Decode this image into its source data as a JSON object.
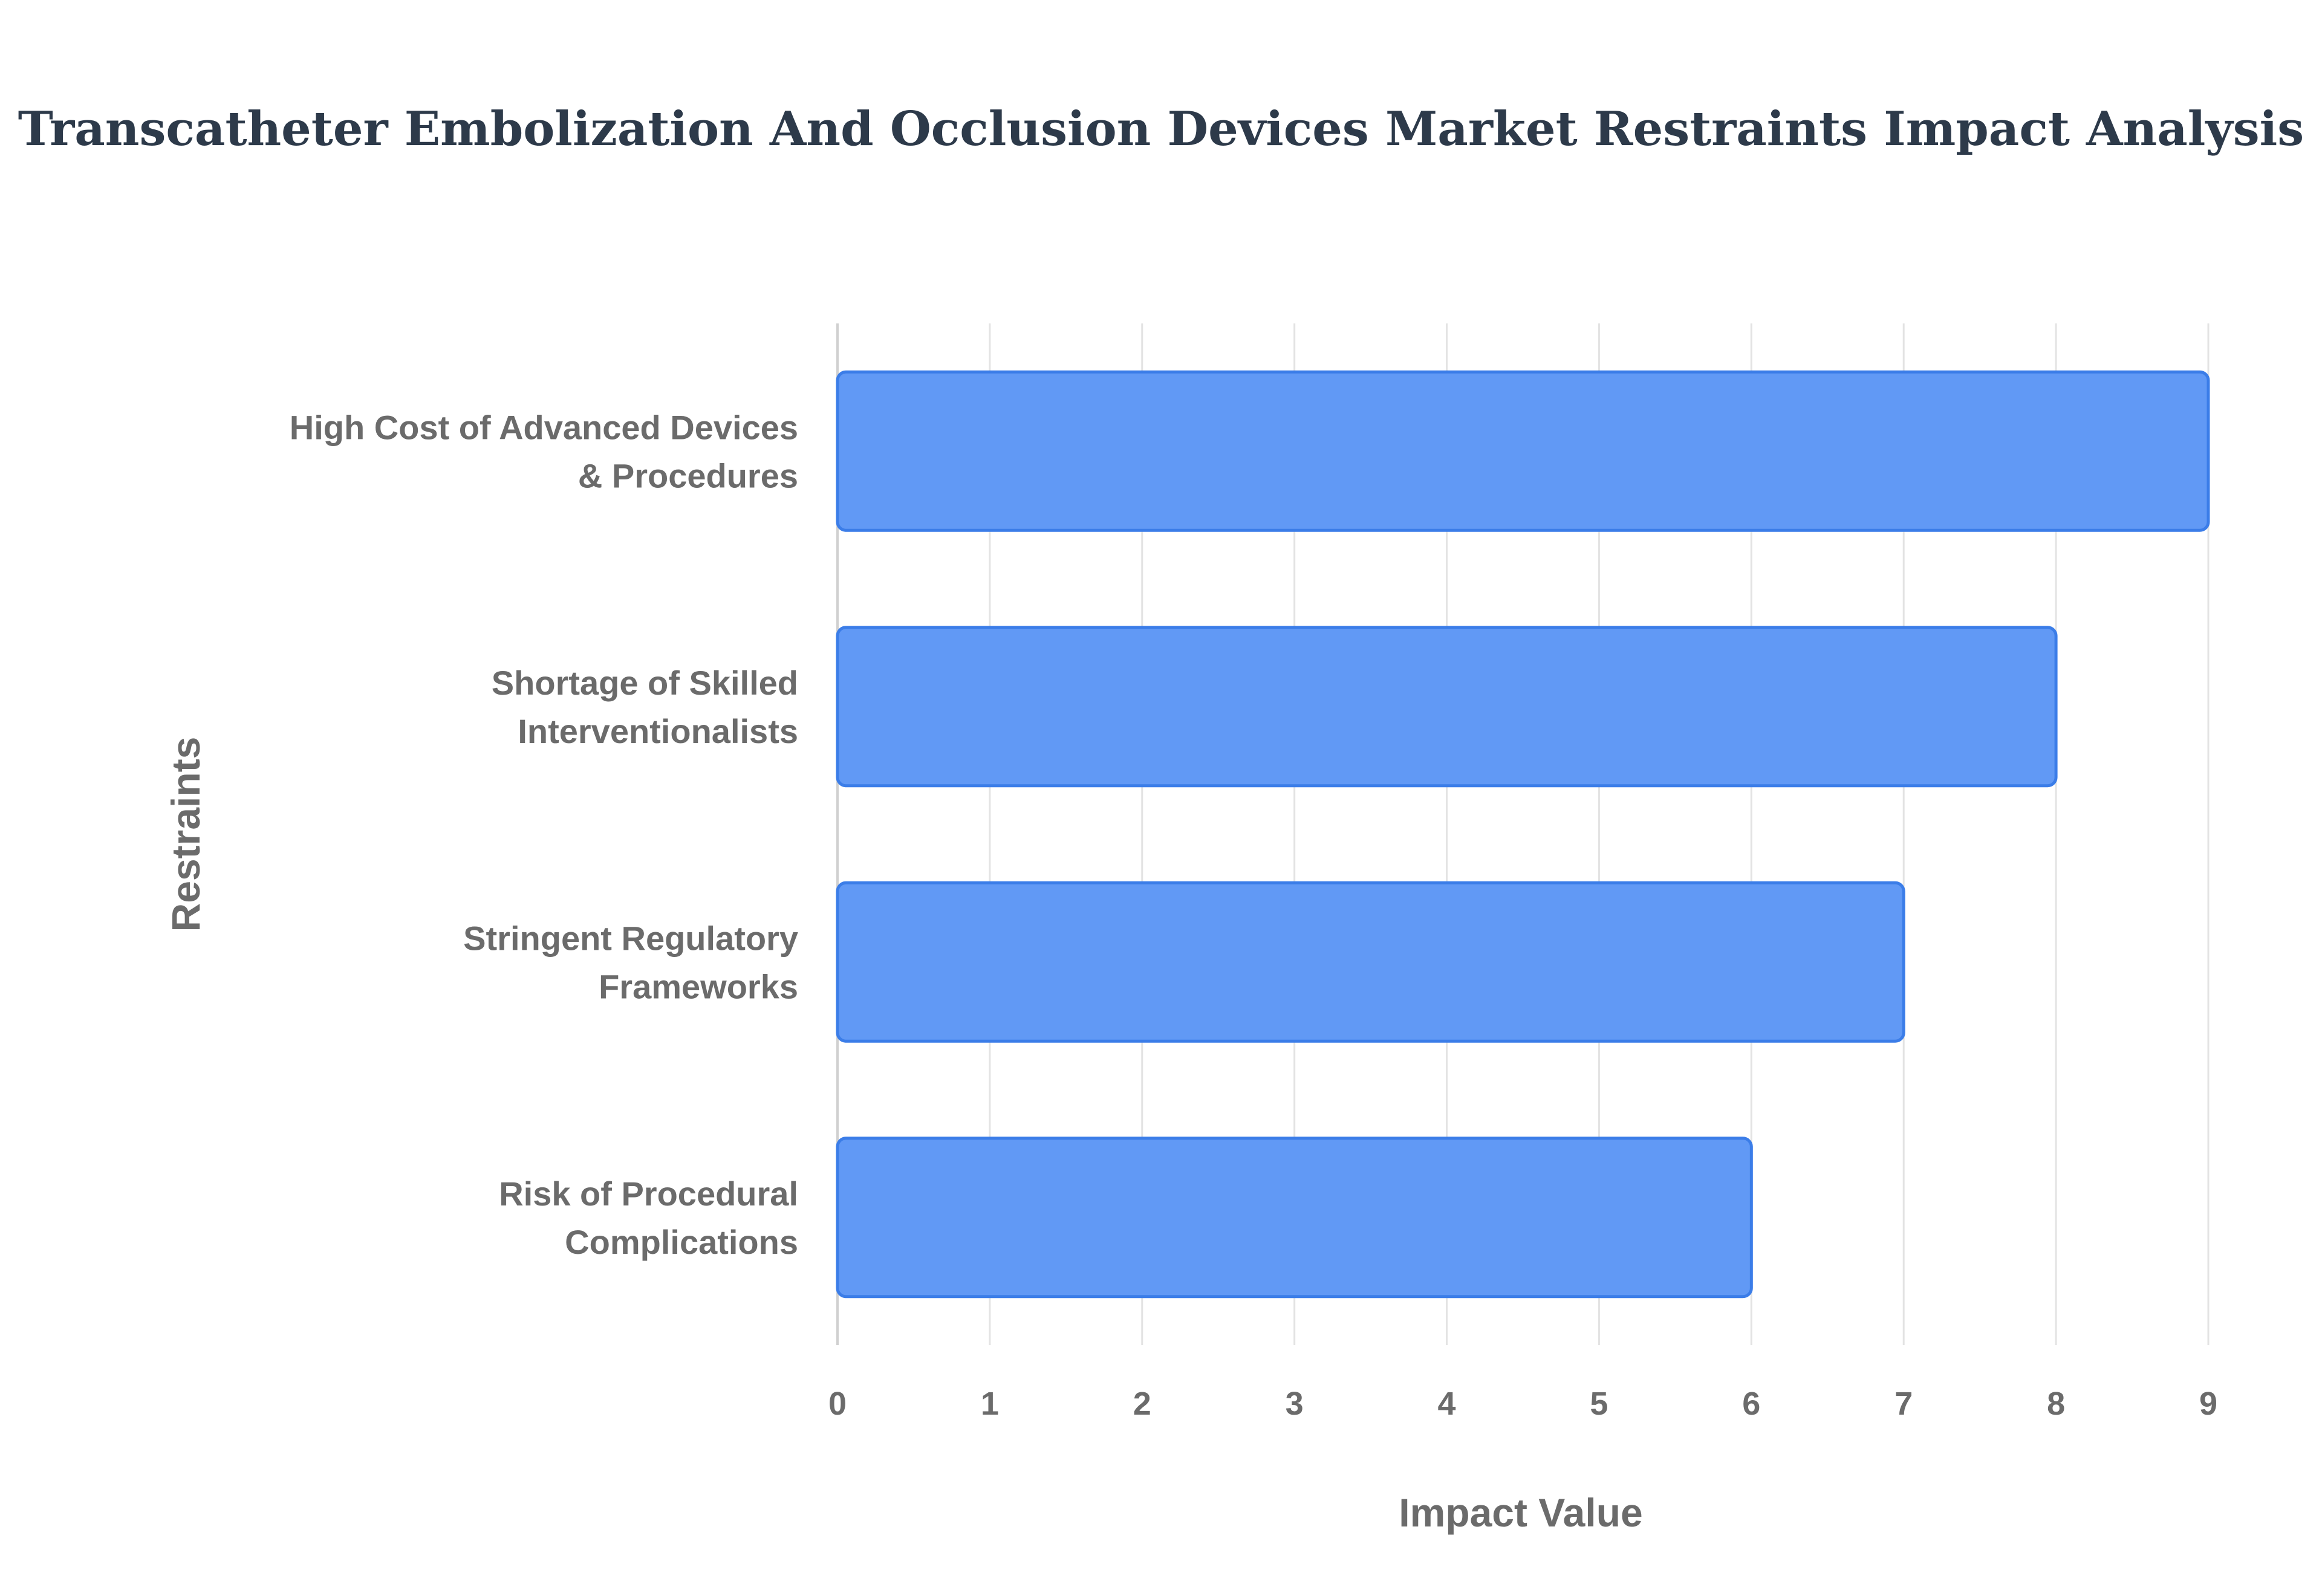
{
  "chart_data": {
    "type": "bar",
    "orientation": "horizontal",
    "title": "Transcatheter Embolization And Occlusion Devices Market Restraints Impact Analysis",
    "xlabel": "Impact Value",
    "ylabel": "Restraints",
    "categories": [
      [
        "High Cost of Advanced Devices",
        "& Procedures"
      ],
      [
        "Shortage of Skilled",
        "Interventionalists"
      ],
      [
        "Stringent Regulatory",
        "Frameworks"
      ],
      [
        "Risk of Procedural",
        "Complications"
      ]
    ],
    "values": [
      9,
      8,
      7,
      6
    ],
    "xlim": [
      0,
      9
    ],
    "xticks": [
      "0",
      "1",
      "2",
      "3",
      "4",
      "5",
      "6",
      "7",
      "8",
      "9"
    ],
    "grid": true,
    "colors": {
      "bar_fill": "#6199f5",
      "bar_stroke": "#3b7de8",
      "grid": "#e3e3e3",
      "axis": "#d0d0d0"
    }
  }
}
